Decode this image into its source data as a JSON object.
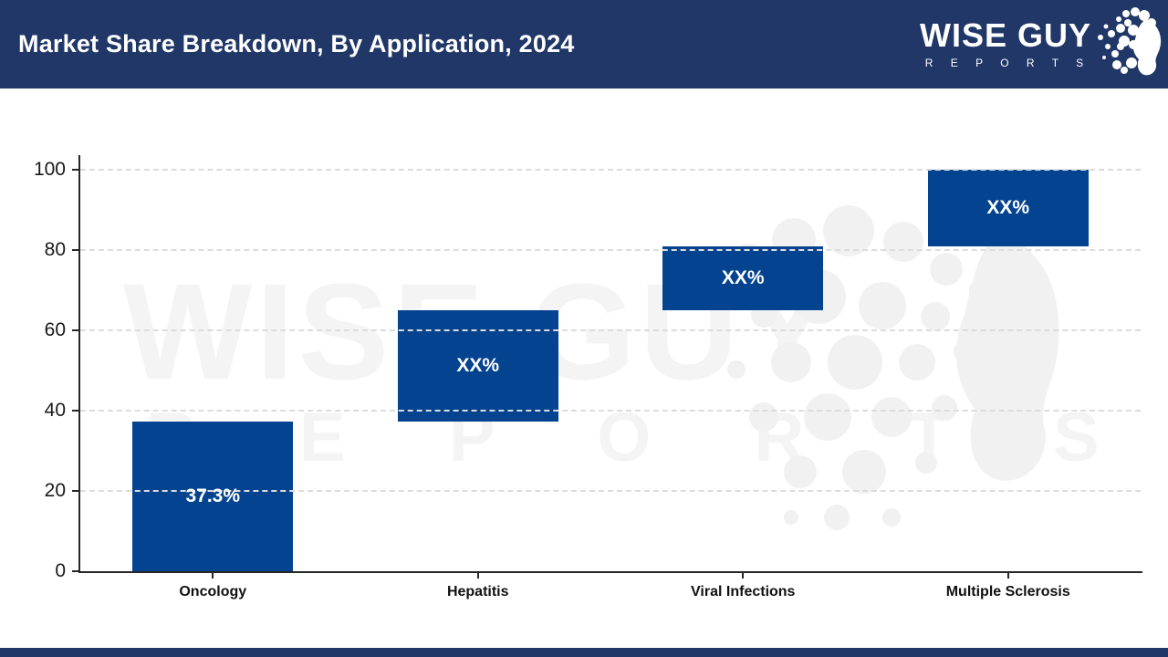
{
  "header": {
    "title": "Market Share Breakdown, By Application, 2024"
  },
  "logo": {
    "line1": "WISE GUY",
    "line2": "R E P O R T S"
  },
  "watermark": {
    "line1": "WISE GUY",
    "line2": "R E P O R T S"
  },
  "colors": {
    "header_bg": "#203768",
    "footer_bg": "#203768",
    "bar": "#04438f",
    "grid": "#dcdcdc",
    "axis": "#262626",
    "tick_text": "#1a1a1a",
    "category_text": "#111111",
    "bar_label_text": "#ffffff",
    "watermark": "#f4f4f4"
  },
  "chart_data": {
    "type": "bar",
    "subtype": "waterfall-floating-bars",
    "title": "Market Share Breakdown, By Application, 2024",
    "categories": [
      "Oncology",
      "Hepatitis",
      "Viral Infections",
      "Multiple Sclerosis"
    ],
    "bars": [
      {
        "category": "Oncology",
        "start": 0,
        "end": 37.3,
        "label": "37.3%"
      },
      {
        "category": "Hepatitis",
        "start": 37.3,
        "end": 65,
        "label": "XX%"
      },
      {
        "category": "Viral Infections",
        "start": 65,
        "end": 81,
        "label": "XX%"
      },
      {
        "category": "Multiple Sclerosis",
        "start": 81,
        "end": 100,
        "label": "XX%"
      }
    ],
    "yticks": [
      0,
      20,
      40,
      60,
      80,
      100
    ],
    "ylim": [
      0,
      104
    ],
    "xlabel": "",
    "ylabel": "",
    "grid": "horizontal-dashed",
    "legend": false
  }
}
